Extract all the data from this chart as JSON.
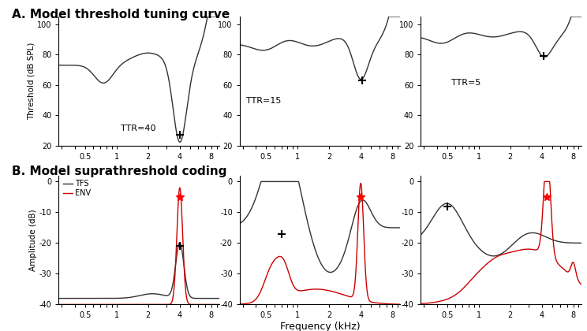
{
  "title_A": "A. Model threshold tuning curve",
  "title_B": "B. Model suprathreshold coding",
  "ylabel_A": "Threshold (dB SPL)",
  "ylabel_B": "Amplitude (dB)",
  "xlabel": "Frequency (kHz)",
  "line_color": "#333333",
  "tfs_color": "#333333",
  "env_color": "#cc0000",
  "legend_tfs": "TFS",
  "legend_env": "ENV"
}
